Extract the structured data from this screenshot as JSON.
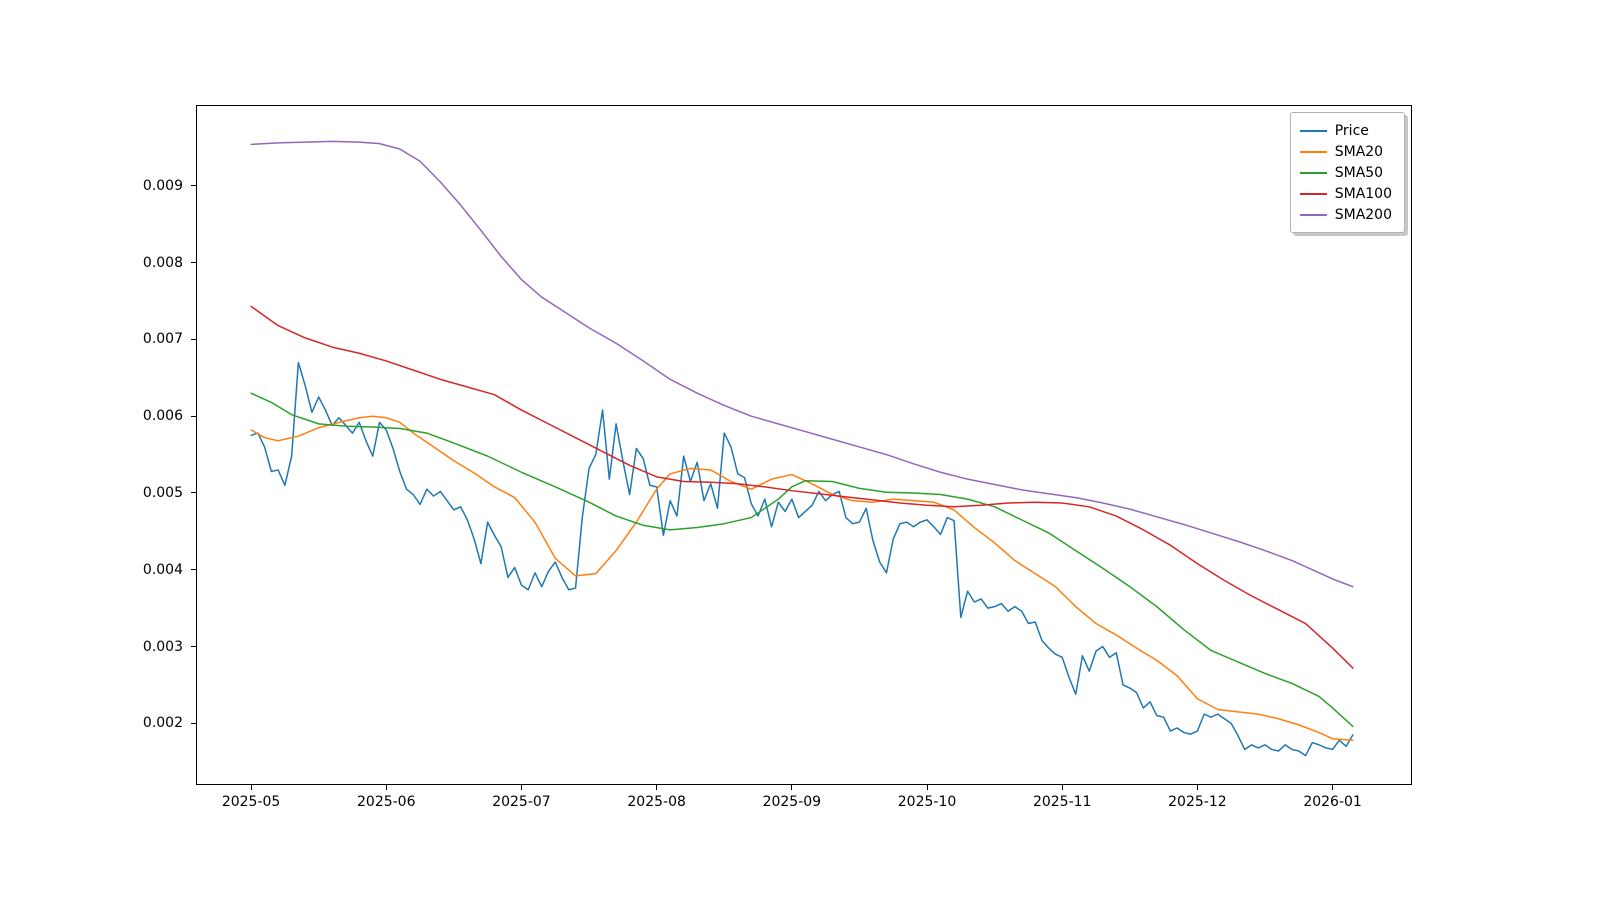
{
  "figure": {
    "background_color": "#ffffff",
    "axes_border_color": "#000000",
    "tick_color": "#000000"
  },
  "chart_data": {
    "type": "line",
    "title": "",
    "xlabel": "",
    "ylabel": "",
    "grid": false,
    "legend_position": "upper right",
    "x_unit": "months since 2025-05-01 (0 = 2025-05, 1 = 2025-06, ...)",
    "xlim": [
      -0.4,
      8.58
    ],
    "ylim": [
      0.00121,
      0.01004
    ],
    "x_ticks": [
      {
        "t": 0,
        "label": "2025-05"
      },
      {
        "t": 1,
        "label": "2025-06"
      },
      {
        "t": 2,
        "label": "2025-07"
      },
      {
        "t": 3,
        "label": "2025-08"
      },
      {
        "t": 4,
        "label": "2025-09"
      },
      {
        "t": 5,
        "label": "2025-10"
      },
      {
        "t": 6,
        "label": "2025-11"
      },
      {
        "t": 7,
        "label": "2025-12"
      },
      {
        "t": 8,
        "label": "2026-01"
      }
    ],
    "y_ticks": [
      {
        "v": 0.002,
        "label": "0.002"
      },
      {
        "v": 0.003,
        "label": "0.003"
      },
      {
        "v": 0.004,
        "label": "0.004"
      },
      {
        "v": 0.005,
        "label": "0.005"
      },
      {
        "v": 0.006,
        "label": "0.006"
      },
      {
        "v": 0.007,
        "label": "0.007"
      },
      {
        "v": 0.008,
        "label": "0.008"
      },
      {
        "v": 0.009,
        "label": "0.009"
      }
    ],
    "series": [
      {
        "name": "Price",
        "color": "#1f77b4",
        "line_width": 1.5,
        "x_start": 0.0,
        "x_step": 0.05,
        "values": [
          0.00575,
          0.00578,
          0.0056,
          0.00528,
          0.0053,
          0.0051,
          0.00548,
          0.0067,
          0.0064,
          0.00605,
          0.00625,
          0.00608,
          0.00588,
          0.00598,
          0.00588,
          0.00578,
          0.00592,
          0.00568,
          0.00548,
          0.00592,
          0.00582,
          0.00558,
          0.00528,
          0.00505,
          0.00498,
          0.00485,
          0.00505,
          0.00496,
          0.00502,
          0.0049,
          0.00478,
          0.00482,
          0.00465,
          0.0044,
          0.00408,
          0.00462,
          0.00445,
          0.0043,
          0.0039,
          0.00403,
          0.0038,
          0.00374,
          0.00396,
          0.00378,
          0.00398,
          0.0041,
          0.0039,
          0.00374,
          0.00376,
          0.00468,
          0.00532,
          0.0055,
          0.00608,
          0.00518,
          0.0059,
          0.00542,
          0.00498,
          0.00558,
          0.00545,
          0.0051,
          0.00508,
          0.00445,
          0.0049,
          0.0047,
          0.00548,
          0.00515,
          0.0054,
          0.0049,
          0.00512,
          0.0048,
          0.00578,
          0.0056,
          0.00525,
          0.0052,
          0.00486,
          0.0047,
          0.00492,
          0.00456,
          0.00488,
          0.00476,
          0.00492,
          0.00468,
          0.00476,
          0.00484,
          0.00502,
          0.0049,
          0.00498,
          0.00502,
          0.00468,
          0.0046,
          0.00462,
          0.0048,
          0.00438,
          0.0041,
          0.00396,
          0.0044,
          0.0046,
          0.00462,
          0.00456,
          0.00462,
          0.00465,
          0.00456,
          0.00446,
          0.00468,
          0.00464,
          0.00338,
          0.00372,
          0.00358,
          0.00362,
          0.0035,
          0.00352,
          0.00356,
          0.00346,
          0.00352,
          0.00346,
          0.0033,
          0.00332,
          0.00308,
          0.00298,
          0.0029,
          0.00286,
          0.0026,
          0.00238,
          0.00288,
          0.00268,
          0.00294,
          0.003,
          0.00286,
          0.00292,
          0.0025,
          0.00246,
          0.0024,
          0.0022,
          0.00228,
          0.0021,
          0.00208,
          0.0019,
          0.00194,
          0.00188,
          0.00186,
          0.0019,
          0.00212,
          0.00208,
          0.00212,
          0.00206,
          0.002,
          0.00184,
          0.00166,
          0.00172,
          0.00168,
          0.00172,
          0.00166,
          0.00164,
          0.00172,
          0.00166,
          0.00164,
          0.00158,
          0.00175,
          0.00172,
          0.00168,
          0.00166,
          0.00178,
          0.0017,
          0.00185
        ]
      },
      {
        "name": "SMA20",
        "color": "#ff7f0e",
        "line_width": 1.5,
        "x": [
          0,
          0.1,
          0.2,
          0.35,
          0.5,
          0.65,
          0.8,
          0.9,
          1.0,
          1.1,
          1.2,
          1.35,
          1.5,
          1.65,
          1.8,
          1.95,
          2.1,
          2.25,
          2.4,
          2.55,
          2.7,
          2.85,
          3.0,
          3.1,
          3.25,
          3.4,
          3.55,
          3.7,
          3.85,
          4.0,
          4.15,
          4.3,
          4.45,
          4.6,
          4.75,
          4.9,
          5.05,
          5.2,
          5.35,
          5.5,
          5.65,
          5.8,
          5.95,
          6.1,
          6.25,
          6.4,
          6.55,
          6.7,
          6.85,
          7.0,
          7.15,
          7.3,
          7.45,
          7.6,
          7.75,
          7.9,
          8.0,
          8.15
        ],
        "values": [
          0.00582,
          0.00572,
          0.00568,
          0.00574,
          0.00585,
          0.00592,
          0.00598,
          0.006,
          0.00598,
          0.00592,
          0.00578,
          0.0056,
          0.00542,
          0.00526,
          0.00508,
          0.00494,
          0.00462,
          0.00415,
          0.00392,
          0.00395,
          0.00425,
          0.00462,
          0.00505,
          0.00525,
          0.00532,
          0.0053,
          0.00515,
          0.00505,
          0.00518,
          0.00524,
          0.00512,
          0.00498,
          0.0049,
          0.00488,
          0.00492,
          0.0049,
          0.00488,
          0.00478,
          0.00455,
          0.00435,
          0.00412,
          0.00395,
          0.00378,
          0.00352,
          0.0033,
          0.00315,
          0.00298,
          0.00282,
          0.00262,
          0.00232,
          0.00218,
          0.00215,
          0.00212,
          0.00206,
          0.00198,
          0.00188,
          0.0018,
          0.00178
        ]
      },
      {
        "name": "SMA50",
        "color": "#2ca02c",
        "line_width": 1.5,
        "x": [
          0,
          0.15,
          0.3,
          0.5,
          0.7,
          0.9,
          1.1,
          1.3,
          1.5,
          1.75,
          2.0,
          2.25,
          2.5,
          2.7,
          2.9,
          3.1,
          3.3,
          3.5,
          3.7,
          3.9,
          4.0,
          4.1,
          4.3,
          4.5,
          4.7,
          4.9,
          5.1,
          5.3,
          5.5,
          5.7,
          5.9,
          6.1,
          6.3,
          6.5,
          6.7,
          6.9,
          7.1,
          7.3,
          7.5,
          7.7,
          7.9,
          8.0,
          8.15
        ],
        "values": [
          0.0063,
          0.00618,
          0.00602,
          0.0059,
          0.00587,
          0.00586,
          0.00584,
          0.00578,
          0.00565,
          0.00548,
          0.00527,
          0.00508,
          0.00488,
          0.0047,
          0.00458,
          0.00452,
          0.00455,
          0.0046,
          0.00468,
          0.00492,
          0.00508,
          0.00516,
          0.00515,
          0.00506,
          0.00501,
          0.005,
          0.00498,
          0.00492,
          0.00482,
          0.00465,
          0.00448,
          0.00425,
          0.00402,
          0.00378,
          0.00352,
          0.00322,
          0.00295,
          0.0028,
          0.00265,
          0.00252,
          0.00235,
          0.0022,
          0.00196
        ]
      },
      {
        "name": "SMA100",
        "color": "#d62728",
        "line_width": 1.5,
        "x": [
          0,
          0.2,
          0.4,
          0.6,
          0.8,
          1.0,
          1.2,
          1.4,
          1.6,
          1.8,
          2.0,
          2.2,
          2.4,
          2.6,
          2.8,
          3.0,
          3.2,
          3.4,
          3.6,
          3.8,
          4.0,
          4.2,
          4.4,
          4.6,
          4.8,
          5.0,
          5.2,
          5.4,
          5.6,
          5.8,
          6.0,
          6.2,
          6.4,
          6.6,
          6.8,
          7.0,
          7.2,
          7.4,
          7.6,
          7.8,
          8.0,
          8.15
        ],
        "values": [
          0.00743,
          0.00718,
          0.00702,
          0.0069,
          0.00682,
          0.00672,
          0.0066,
          0.00648,
          0.00638,
          0.00628,
          0.00608,
          0.0059,
          0.00572,
          0.00554,
          0.00536,
          0.00521,
          0.00515,
          0.00514,
          0.00512,
          0.00508,
          0.00503,
          0.00499,
          0.00495,
          0.00491,
          0.00487,
          0.00484,
          0.00482,
          0.00484,
          0.00487,
          0.00488,
          0.00487,
          0.00482,
          0.0047,
          0.00452,
          0.00432,
          0.00408,
          0.00386,
          0.00366,
          0.00348,
          0.0033,
          0.00298,
          0.00272
        ]
      },
      {
        "name": "SMA200",
        "color": "#9467bd",
        "line_width": 1.5,
        "x": [
          0,
          0.2,
          0.4,
          0.6,
          0.8,
          0.95,
          1.1,
          1.25,
          1.4,
          1.55,
          1.7,
          1.85,
          2.0,
          2.15,
          2.3,
          2.5,
          2.7,
          2.9,
          3.1,
          3.3,
          3.5,
          3.7,
          3.9,
          4.1,
          4.3,
          4.5,
          4.7,
          4.9,
          5.1,
          5.3,
          5.5,
          5.7,
          5.9,
          6.1,
          6.3,
          6.5,
          6.7,
          6.9,
          7.1,
          7.3,
          7.5,
          7.7,
          7.9,
          8.0,
          8.15
        ],
        "values": [
          0.00954,
          0.00956,
          0.00957,
          0.00958,
          0.00957,
          0.00955,
          0.00948,
          0.00932,
          0.00905,
          0.00875,
          0.00842,
          0.00808,
          0.00778,
          0.00755,
          0.00738,
          0.00715,
          0.00695,
          0.00672,
          0.00648,
          0.0063,
          0.00614,
          0.006,
          0.0059,
          0.0058,
          0.0057,
          0.0056,
          0.0055,
          0.00538,
          0.00527,
          0.00518,
          0.00511,
          0.00504,
          0.00499,
          0.00494,
          0.00487,
          0.00479,
          0.00469,
          0.00459,
          0.00448,
          0.00437,
          0.00425,
          0.00412,
          0.00396,
          0.00388,
          0.00378
        ]
      }
    ]
  }
}
